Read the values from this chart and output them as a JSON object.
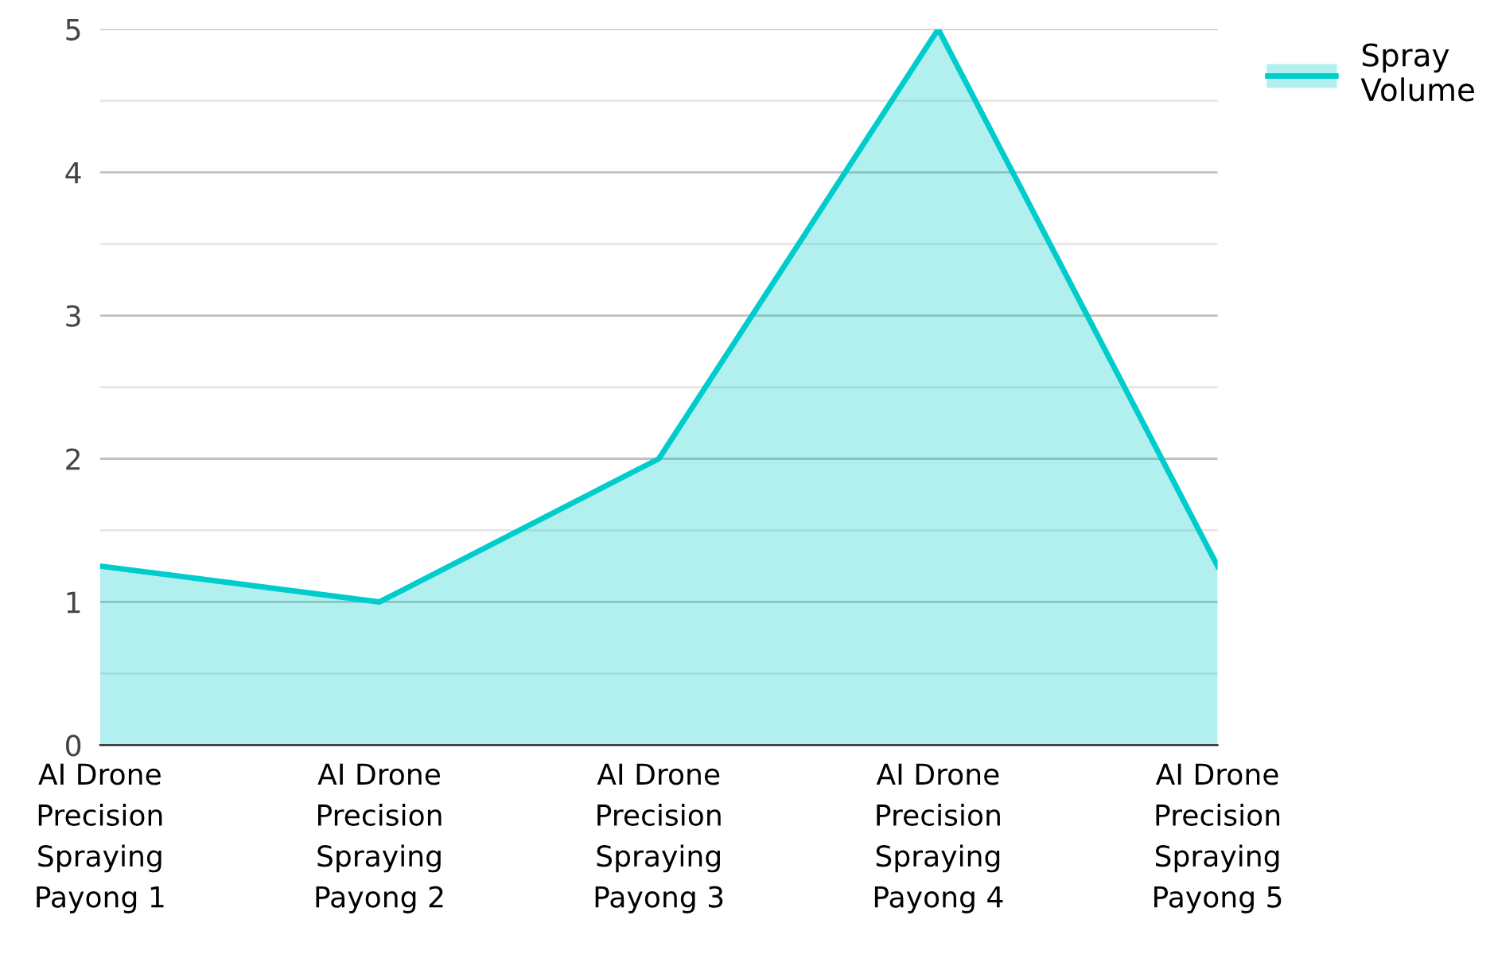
{
  "chart_data": {
    "type": "area",
    "categories": [
      "AI Drone\nPrecision\nSpraying\nPayong 1",
      "AI Drone\nPrecision\nSpraying\nPayong 2",
      "AI Drone\nPrecision\nSpraying\nPayong 3",
      "AI Drone\nPrecision\nSpraying\nPayong 4",
      "AI Drone\nPrecision\nSpraying\nPayong 5"
    ],
    "series": [
      {
        "name": "Spray\nVolume",
        "color": "#00cccc",
        "values": [
          1.25,
          1,
          2,
          5,
          1.25
        ]
      }
    ],
    "ylim": [
      0,
      5
    ],
    "yticks": [
      0,
      {
        "value": 0.5,
        "label": null
      },
      1,
      {
        "value": 1.5,
        "label": null
      },
      2,
      {
        "value": 2.5,
        "label": null
      },
      3,
      {
        "value": 3.5,
        "label": null
      },
      4,
      {
        "value": 4.5,
        "label": null
      },
      5
    ],
    "grid": "y",
    "legend": "top right",
    "marker": "none",
    "line_style": "solid"
  }
}
